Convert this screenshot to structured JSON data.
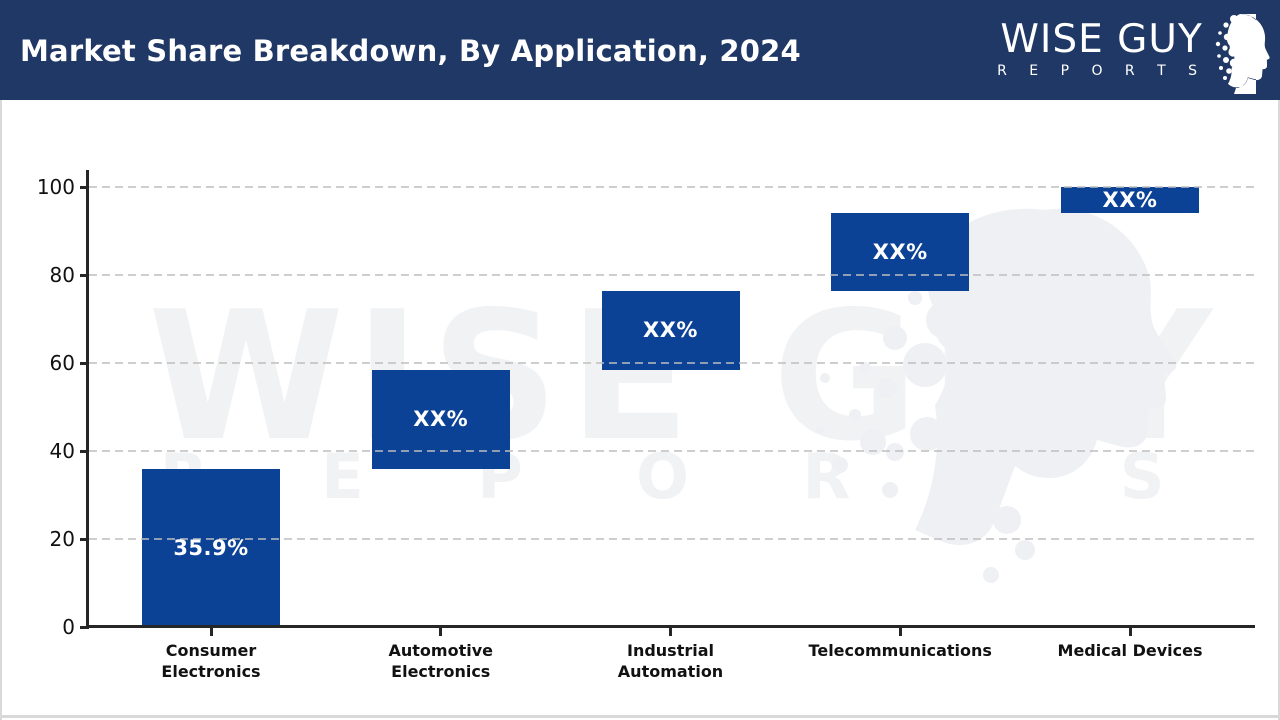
{
  "header": {
    "title": "Market Share Breakdown, By Application, 2024",
    "brand": {
      "line1": "WISE GUY",
      "line2": "R E P O R T S"
    }
  },
  "watermark": {
    "line1": "WISE GUY",
    "line2": "R E P O R T S"
  },
  "colors": {
    "header_bg": "#203865",
    "bar": "#0b4296",
    "grid": "#bebebe",
    "axis": "#262626",
    "bar_label_text": "#ffffff",
    "watermark": "#f1f2f4"
  },
  "chart_data": {
    "type": "bar",
    "subtype": "waterfall",
    "title": "Market Share Breakdown, By Application, 2024",
    "categories": [
      "Consumer Electronics",
      "Automotive Electronics",
      "Industrial Automation",
      "Telecommunications",
      "Medical Devices"
    ],
    "tick_labels": [
      "Consumer\nElectronics",
      "Automotive\nElectronics",
      "Industrial\nAutomation",
      "Telecommunications",
      "Medical Devices"
    ],
    "segments": [
      {
        "category": "Consumer Electronics",
        "start": 0,
        "end": 35.9,
        "label": "35.9%"
      },
      {
        "category": "Automotive Electronics",
        "start": 35.9,
        "end": 58.5,
        "label": "XX%"
      },
      {
        "category": "Industrial Automation",
        "start": 58.5,
        "end": 76.3,
        "label": "XX%"
      },
      {
        "category": "Telecommunications",
        "start": 76.3,
        "end": 94.2,
        "label": "XX%"
      },
      {
        "category": "Medical Devices",
        "start": 94.2,
        "end": 100,
        "label": "XX%"
      }
    ],
    "ylim": [
      0,
      100
    ],
    "yticks": [
      0,
      20,
      40,
      60,
      80,
      100
    ],
    "xlabel": "",
    "ylabel": "",
    "grid": "horizontal-dashed",
    "legend": "none"
  }
}
